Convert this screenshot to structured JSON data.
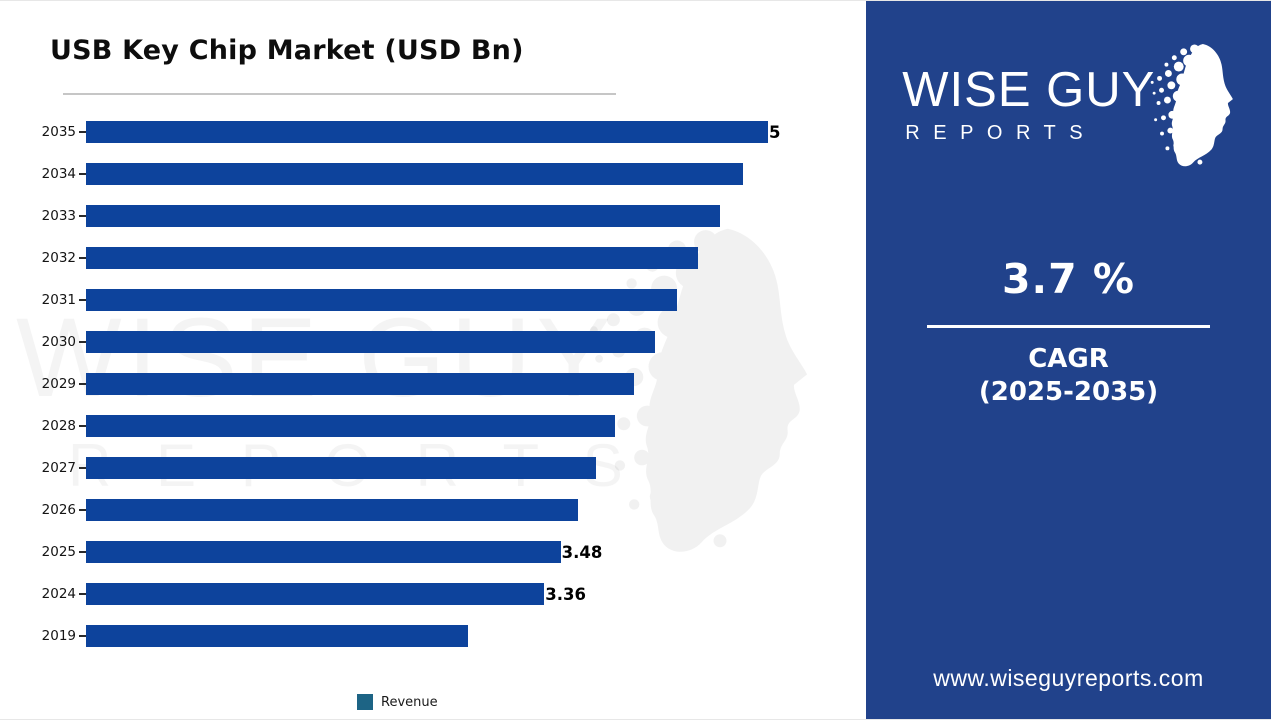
{
  "title": "USB Key Chip Market (USD Bn)",
  "chart_data": {
    "type": "bar",
    "orientation": "horizontal",
    "title": "USB Key Chip Market (USD Bn)",
    "xlabel": "",
    "ylabel": "",
    "xlim": [
      0,
      5.5
    ],
    "grid": false,
    "categories": [
      "2035",
      "2034",
      "2033",
      "2032",
      "2031",
      "2030",
      "2029",
      "2028",
      "2027",
      "2026",
      "2025",
      "2024",
      "2019"
    ],
    "series": [
      {
        "name": "Revenue",
        "color": "#0d439c",
        "values": [
          5.0,
          4.82,
          4.65,
          4.49,
          4.33,
          4.17,
          4.02,
          3.88,
          3.74,
          3.61,
          3.48,
          3.36,
          2.8
        ]
      }
    ],
    "value_labels": {
      "2035": "5",
      "2025": "3.48",
      "2024": "3.36"
    },
    "legend_entries": [
      {
        "label": "Revenue",
        "color": "#1d6485"
      }
    ],
    "legend_position": "bottom-center"
  },
  "legend": {
    "revenue_label": "Revenue"
  },
  "watermark": {
    "line1": "WISE GUY",
    "line2": "R E P O R T S"
  },
  "sidebar": {
    "logo_line1": "WISE GUY",
    "logo_line2": "REPORTS",
    "cagr_value": "3.7 %",
    "cagr_title": "CAGR",
    "cagr_range": "(2025-2035)",
    "website": "www.wiseguyreports.com"
  },
  "colors": {
    "bar": "#0d439c",
    "sidebar_bg": "#21428b",
    "legend_marker": "#1d6485",
    "title_underline": "#c6c6c6"
  }
}
